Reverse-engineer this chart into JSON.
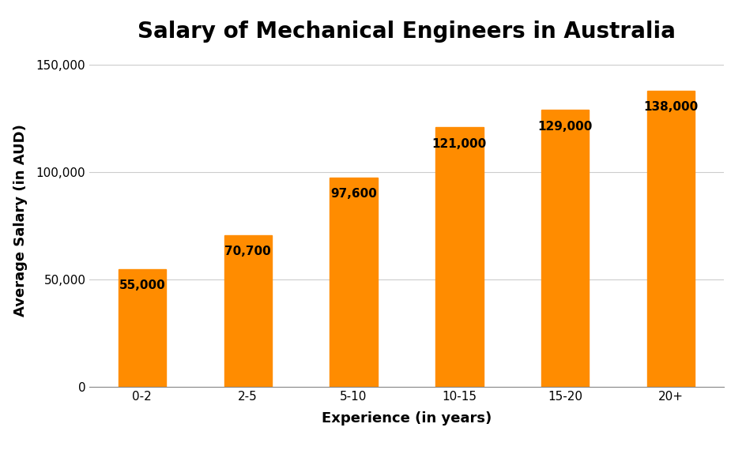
{
  "title": "Salary of Mechanical Engineers in Australia",
  "xlabel": "Experience (in years)",
  "ylabel": "Average Salary (in AUD)",
  "categories": [
    "0-2",
    "2-5",
    "5-10",
    "10-15",
    "15-20",
    "20+"
  ],
  "values": [
    55000,
    70700,
    97600,
    121000,
    129000,
    138000
  ],
  "bar_color": "#FF8C00",
  "label_color": "#000000",
  "background_color": "#ffffff",
  "ylim": [
    0,
    155000
  ],
  "yticks": [
    0,
    50000,
    100000,
    150000
  ],
  "title_fontsize": 20,
  "axis_label_fontsize": 13,
  "tick_fontsize": 11,
  "bar_label_fontsize": 11,
  "title_fontweight": "bold",
  "axis_label_fontweight": "bold",
  "bar_width": 0.45
}
